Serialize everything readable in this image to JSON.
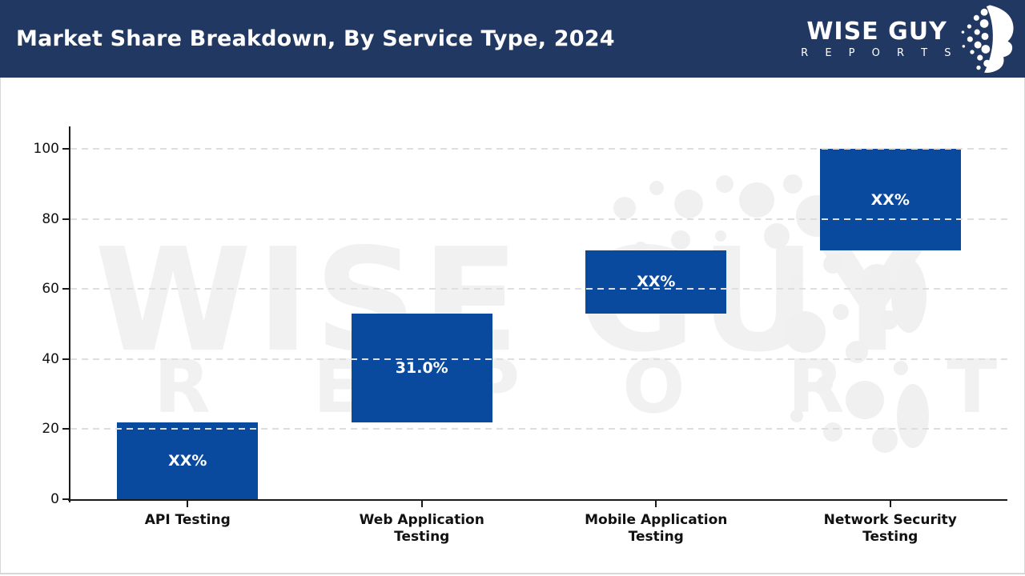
{
  "header": {
    "title": "Market Share Breakdown, By Service Type, 2024",
    "logo": {
      "name": "WISE GUY",
      "sub": "R E P O R T S"
    }
  },
  "watermark": {
    "line1": "WISE GUY",
    "line2": "R E P O R T S"
  },
  "chart_data": {
    "type": "bar",
    "subtype": "waterfall-floating-bars",
    "title": "Market Share Breakdown, By Service Type, 2024",
    "categories": [
      "API Testing",
      "Web Application Testing",
      "Mobile Application Testing",
      "Network Security Testing"
    ],
    "category_lines": [
      [
        "API Testing"
      ],
      [
        "Web Application",
        "Testing"
      ],
      [
        "Mobile Application",
        "Testing"
      ],
      [
        "Network Security",
        "Testing"
      ]
    ],
    "bars": [
      {
        "category": "API Testing",
        "start": 0,
        "end": 22,
        "value_label": "XX%"
      },
      {
        "category": "Web Application Testing",
        "start": 22,
        "end": 53,
        "value_label": "31.0%"
      },
      {
        "category": "Mobile Application Testing",
        "start": 53,
        "end": 71,
        "value_label": "XX%"
      },
      {
        "category": "Network Security Testing",
        "start": 71,
        "end": 100,
        "value_label": "XX%"
      }
    ],
    "y_ticks": [
      0,
      20,
      40,
      60,
      80,
      100
    ],
    "ylim": [
      0,
      105
    ],
    "xlabel": "",
    "ylabel": "",
    "grid": "horizontal-dashed",
    "legend": "none"
  },
  "colors": {
    "header_bg": "#213862",
    "bar": "#0a4a9e",
    "bar_label": "#ffffff",
    "axis": "#1a1a1a",
    "grid": "#dedede",
    "tick_text": "#111111",
    "watermark": "#f1f1f1"
  }
}
